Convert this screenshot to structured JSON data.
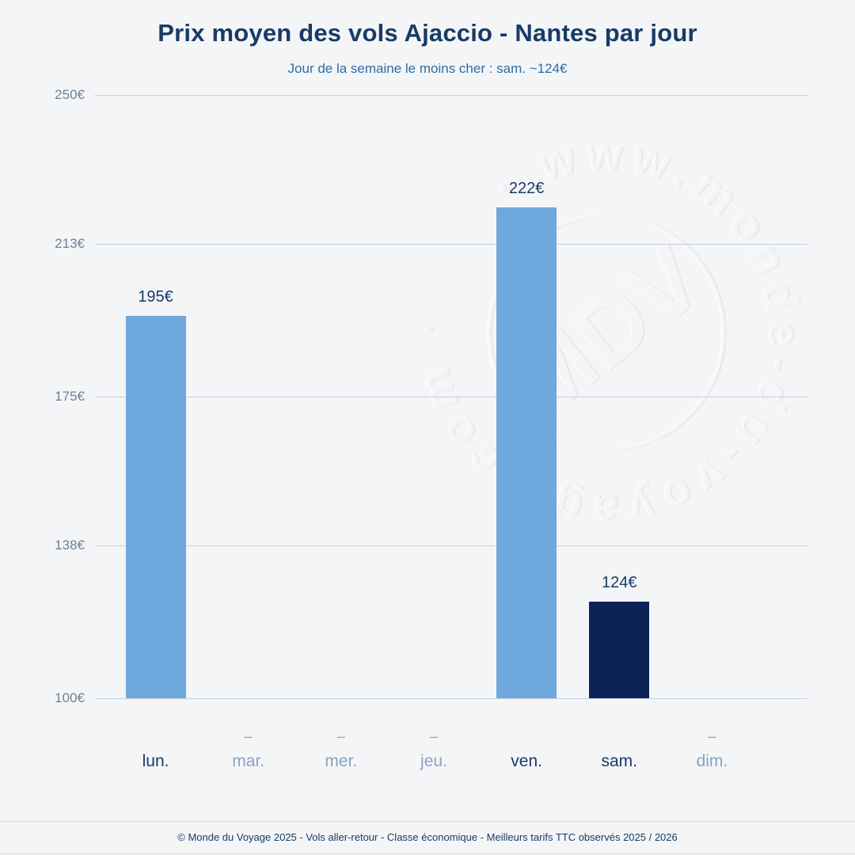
{
  "chart_data": {
    "type": "bar",
    "title": "Prix moyen des vols Ajaccio - Nantes par jour",
    "subtitle": "Jour de la semaine le moins cher : sam. ~124€",
    "categories": [
      "lun.",
      "mar.",
      "mer.",
      "jeu.",
      "ven.",
      "sam.",
      "dim."
    ],
    "values": [
      195,
      null,
      null,
      null,
      222,
      124,
      null
    ],
    "value_labels": [
      "195€",
      null,
      null,
      null,
      "222€",
      "124€",
      null
    ],
    "ylim": [
      100,
      250
    ],
    "yticks": [
      250,
      213,
      175,
      138,
      100
    ],
    "ytick_labels": [
      "250€",
      "213€",
      "175€",
      "138€",
      "100€"
    ],
    "highlight_index": 5,
    "bar_color": "#6fa8dc",
    "highlight_color": "#0d2357",
    "missing_marker": "–",
    "grid": "horizontal",
    "legend": "none"
  },
  "watermark": {
    "ring_text": "· www.monde-du-voyage.com ·",
    "center_text": "MDV"
  },
  "footer": {
    "text": "© Monde du Voyage 2025 - Vols aller-retour - Classe économique - Meilleurs tarifs TTC observés 2025 / 2026"
  }
}
